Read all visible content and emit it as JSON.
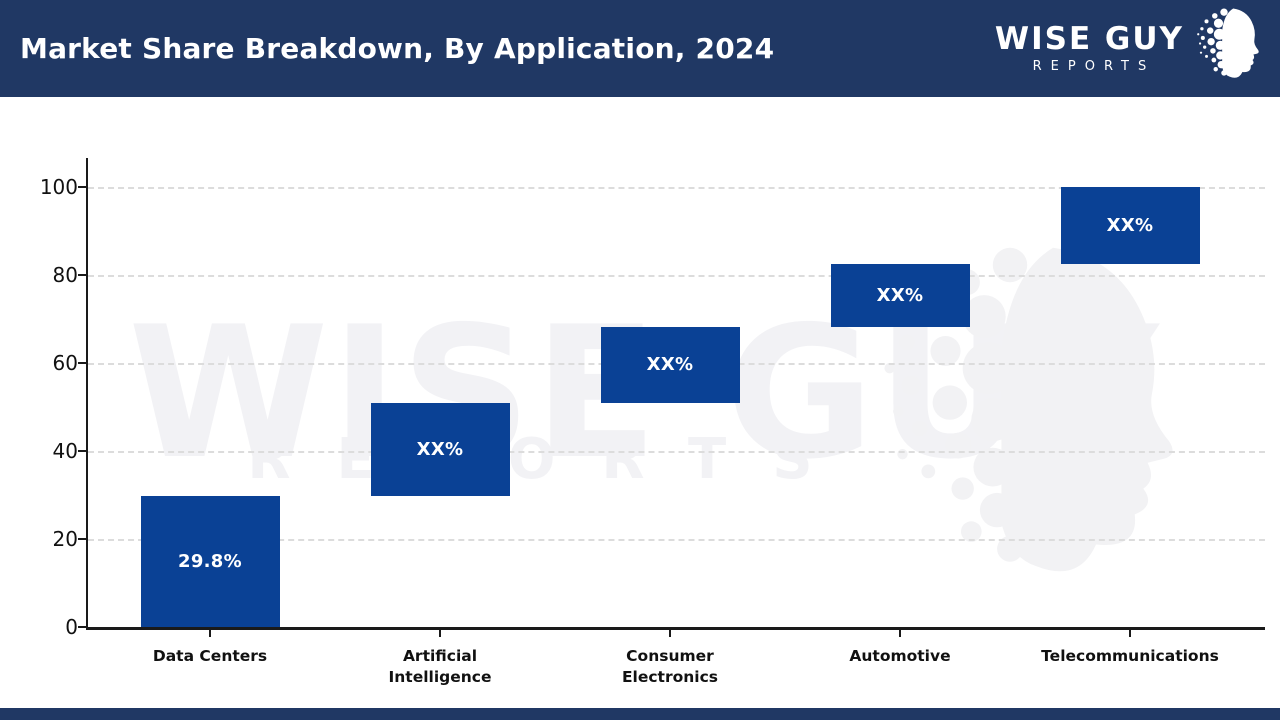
{
  "header": {
    "title": "Market Share Breakdown, By Application, 2024",
    "bg_color": "#203864",
    "logo": {
      "line1": "WISE GUY",
      "line2": "REPORTS"
    }
  },
  "watermark": {
    "line1": "WISE GUY",
    "line2": "REPORTS"
  },
  "chart_data": {
    "type": "bar",
    "variant": "waterfall",
    "title": "Market Share Breakdown, By Application, 2024",
    "categories": [
      "Data Centers",
      "Artificial\nIntelligence",
      "Consumer\nElectronics",
      "Automotive",
      "Telecommunications"
    ],
    "segments": [
      {
        "category": "Data Centers",
        "start": 0,
        "end": 29.8,
        "label": "29.8%"
      },
      {
        "category": "Artificial Intelligence",
        "start": 29.8,
        "end": 51.0,
        "label": "XX%"
      },
      {
        "category": "Consumer Electronics",
        "start": 51.0,
        "end": 68.2,
        "label": "XX%"
      },
      {
        "category": "Automotive",
        "start": 68.2,
        "end": 82.5,
        "label": "XX%"
      },
      {
        "category": "Telecommunications",
        "start": 82.5,
        "end": 100,
        "label": "XX%"
      }
    ],
    "xlabel": "",
    "ylabel": "",
    "yticks": [
      0,
      20,
      40,
      60,
      80,
      100
    ],
    "ylim": [
      0,
      106.6
    ],
    "grid": "horizontal-dashed",
    "legend": "none",
    "bar_color": "#0a4195",
    "bar_label_color": "#ffffff",
    "axis_color": "#1a1a1a",
    "grid_color": "#dcdcdc"
  },
  "footer": {
    "bg_color": "#203864"
  }
}
